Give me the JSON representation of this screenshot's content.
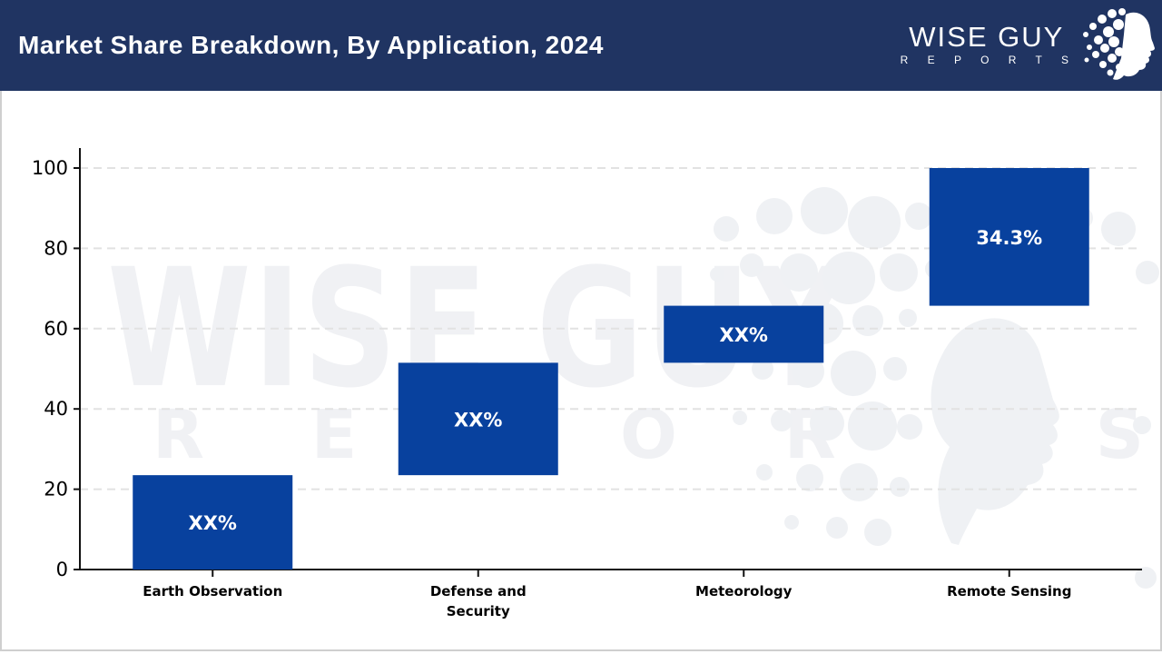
{
  "header": {
    "title": "Market Share Breakdown, By Application, 2024",
    "background_color": "#203462",
    "logo": {
      "wordmark": "WISE GUY",
      "subtext": "R E P O R T S"
    }
  },
  "watermark": {
    "wordmark": "WISE GUY",
    "subtext": "R E P O R T S"
  },
  "chart_data": {
    "type": "bar",
    "variant": "floating-segment-waterfall",
    "title": "Market Share Breakdown, By Application, 2024",
    "categories": [
      "Earth Observation",
      "Defense and Security",
      "Meteorology",
      "Remote Sensing"
    ],
    "category_label_lines": [
      [
        "Earth Observation"
      ],
      [
        "Defense and",
        "Security"
      ],
      [
        "Meteorology"
      ],
      [
        "Remote Sensing"
      ]
    ],
    "segments": [
      {
        "category": "Earth Observation",
        "start": 0,
        "end": 23.5,
        "label": "XX%"
      },
      {
        "category": "Defense and Security",
        "start": 23.5,
        "end": 51.5,
        "label": "XX%"
      },
      {
        "category": "Meteorology",
        "start": 51.5,
        "end": 65.7,
        "label": "XX%"
      },
      {
        "category": "Remote Sensing",
        "start": 65.7,
        "end": 100,
        "label": "34.3%",
        "value": 34.3
      }
    ],
    "xlabel": "",
    "ylabel": "",
    "ylim": [
      0,
      105
    ],
    "yticks": [
      0,
      20,
      40,
      60,
      80,
      100
    ],
    "grid": {
      "horizontal": true,
      "style": "dashed",
      "color": "#e2e2e2"
    },
    "legend": null,
    "bar_color": "#08419e",
    "bar_label_color": "#ffffff",
    "axis_color": "#111111"
  }
}
